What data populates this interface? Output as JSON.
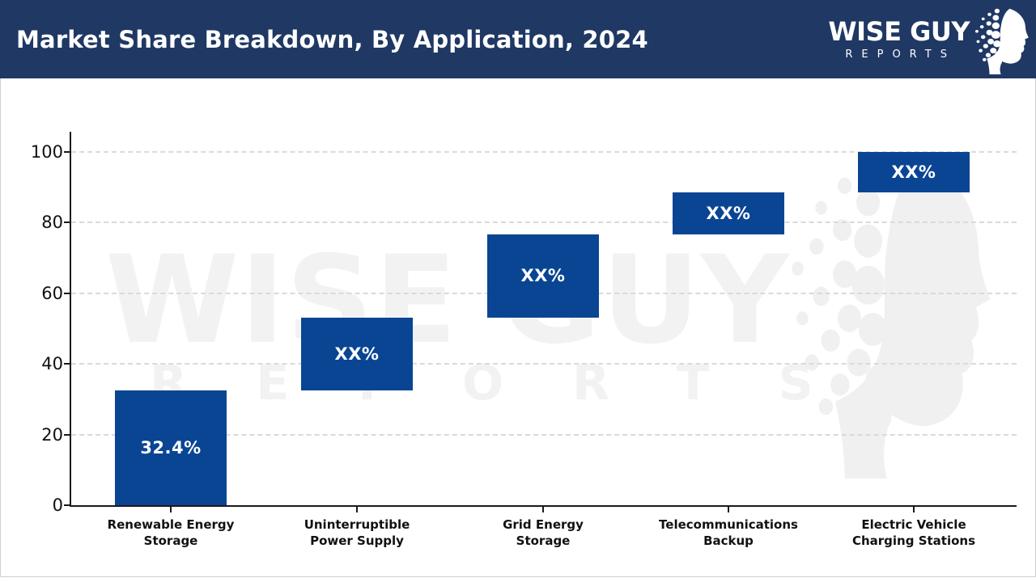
{
  "header": {
    "title": "Market Share Breakdown, By Application, 2024",
    "bg_color": "#1f3864",
    "logo": {
      "line1": "WISE GUY",
      "line2": "REPORTS"
    }
  },
  "watermark": {
    "line1": "WISE GUY",
    "line2": "REPORTS"
  },
  "chart_data": {
    "type": "bar",
    "subtype": "waterfall (stacked offset percentage bars)",
    "title": "Market Share Breakdown, By Application, 2024",
    "categories": [
      [
        "Renewable Energy",
        "Storage"
      ],
      [
        "Uninterruptible",
        "Power Supply"
      ],
      [
        "Grid Energy",
        "Storage"
      ],
      [
        "Telecommunications",
        "Backup"
      ],
      [
        "Electric Vehicle",
        "Charging Stations"
      ]
    ],
    "bars": [
      {
        "label": "32.4%",
        "start": 0,
        "end": 32.4
      },
      {
        "label": "XX%",
        "start": 32.4,
        "end": 53.1
      },
      {
        "label": "XX%",
        "start": 53.1,
        "end": 76.6
      },
      {
        "label": "XX%",
        "start": 76.6,
        "end": 88.5
      },
      {
        "label": "XX%",
        "start": 88.5,
        "end": 100
      }
    ],
    "ylim": [
      0,
      100
    ],
    "yticks": [
      0,
      20,
      40,
      60,
      80,
      100
    ],
    "xlabel": "",
    "ylabel": "",
    "grid": "horizontal dashed gridlines at each y tick",
    "legend": "none",
    "colors": {
      "bar": "#0a4594",
      "bar_label": "#ffffff",
      "grid": "#dadada",
      "axis": "#1a1a1a",
      "tick_label": "#111111",
      "header_bg": "#1f3864",
      "watermark": "#f2f2f2"
    }
  }
}
